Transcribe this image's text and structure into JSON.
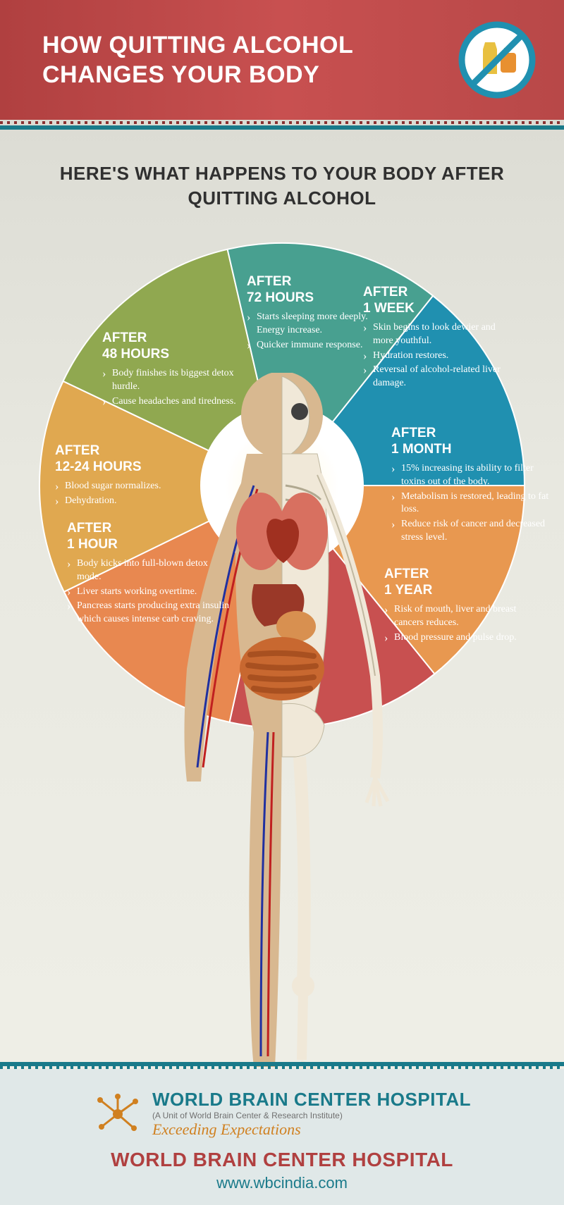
{
  "header": {
    "title": "HOW QUITTING ALCOHOL CHANGES YOUR BODY",
    "bg_color": "#b84848",
    "title_color": "#ffffff",
    "icon_ring_color": "#2090b0",
    "icon_bg_color": "#ffffff"
  },
  "subtitle": "HERE'S WHAT HAPPENS TO YOUR BODY AFTER QUITTING ALCOHOL",
  "wheel": {
    "outer_radius": 344,
    "inner_radius": 110,
    "inner_fill": "#ffffff",
    "center_glow": "#f8f0d0",
    "segments": [
      {
        "key": "seg-1hr",
        "title_lines": [
          "AFTER",
          "1 HOUR"
        ],
        "points": [
          "Body kicks into full-blown detox mode.",
          "Liver starts working overtime.",
          "Pancreas starts producing extra insulin which causes intense carb craving."
        ],
        "start_deg": 141,
        "end_deg": 192.5,
        "fill": "#c85050"
      },
      {
        "key": "seg-1224",
        "title_lines": [
          "AFTER",
          "12-24 HOURS"
        ],
        "points": [
          "Blood sugar normalizes.",
          "Dehydration."
        ],
        "start_deg": 192.5,
        "end_deg": 244,
        "fill": "#e88850"
      },
      {
        "key": "seg-48h",
        "title_lines": [
          "AFTER",
          "48 HOURS"
        ],
        "points": [
          "Body finishes its biggest detox hurdle.",
          "Cause headaches and tiredness."
        ],
        "start_deg": 244,
        "end_deg": 295.5,
        "fill": "#e0a850"
      },
      {
        "key": "seg-72h",
        "title_lines": [
          "AFTER",
          "72 HOURS"
        ],
        "points": [
          "Starts sleeping more deeply. Energy increase.",
          "Quicker immune response."
        ],
        "start_deg": 295.5,
        "end_deg": 347,
        "fill": "#90a850"
      },
      {
        "key": "seg-1wk",
        "title_lines": [
          "AFTER",
          "1 WEEK"
        ],
        "points": [
          "Skin begins to look dewier and more youthful.",
          "Hydration restores.",
          "Reversal of alcohol-related liver damage."
        ],
        "start_deg": 347,
        "end_deg": 398.5,
        "fill": "#48a090"
      },
      {
        "key": "seg-1mo",
        "title_lines": [
          "AFTER",
          "1 MONTH"
        ],
        "points": [
          "15% increasing its ability to filter toxins out of the body.",
          "Metabolism is restored, leading to fat loss.",
          "Reduce risk of cancer and decreased stress level."
        ],
        "start_deg": 398.5,
        "end_deg": 450,
        "fill": "#2090b0"
      },
      {
        "key": "seg-1yr",
        "title_lines": [
          "AFTER",
          "1 YEAR"
        ],
        "points": [
          "Risk of mouth, liver and breast cancers reduces.",
          "Blood pressure and pulse drop."
        ],
        "start_deg": 450,
        "end_deg": 501,
        "fill": "#e89850"
      }
    ]
  },
  "anatomy": {
    "skin_color": "#d8b890",
    "bone_color": "#f0e8d8",
    "artery_color": "#c02020",
    "vein_color": "#2030a0",
    "organ_red": "#a03020",
    "organ_pink": "#d87060",
    "intestine_color": "#c86830"
  },
  "footer": {
    "org_name": "WORLD BRAIN CENTER HOSPITAL",
    "org_sub": "(A Unit of World Brain Center & Research Institute)",
    "tagline": "Exceeding Expectations",
    "url": "www.wbcindia.com",
    "teal": "#1a7a8a",
    "red": "#b04040",
    "orange": "#d08020"
  }
}
